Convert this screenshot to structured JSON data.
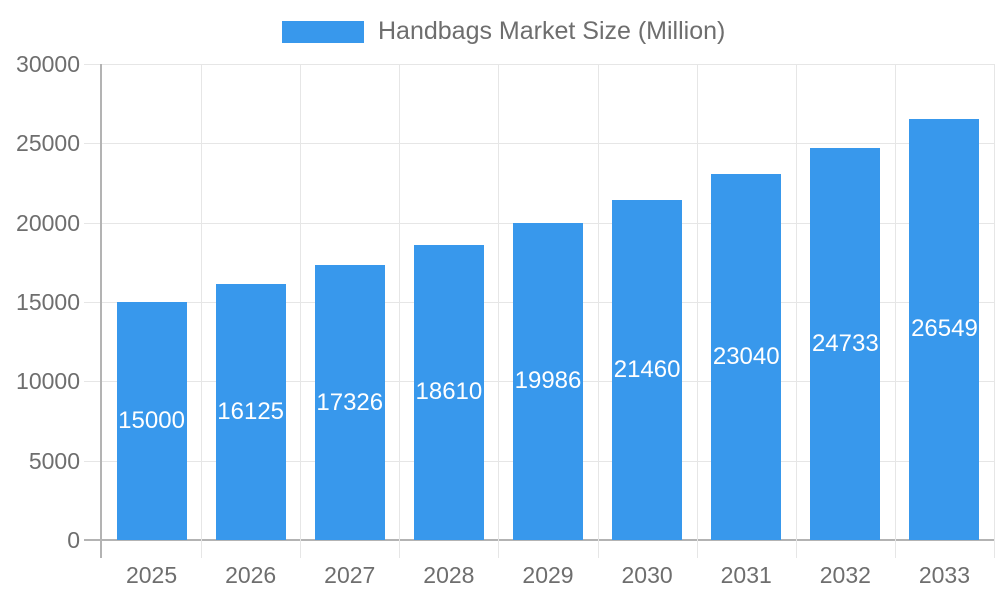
{
  "chart_data": {
    "type": "bar",
    "title": "",
    "legend": "Handbags Market Size (Million)",
    "legend_position": "top",
    "categories": [
      "2025",
      "2026",
      "2027",
      "2028",
      "2029",
      "2030",
      "2031",
      "2032",
      "2033"
    ],
    "values": [
      15000,
      16125,
      17326,
      18610,
      19986,
      21460,
      23040,
      24733,
      26549
    ],
    "xlabel": "",
    "ylabel": "",
    "ylim": [
      0,
      30000
    ],
    "yticks": [
      0,
      5000,
      10000,
      15000,
      20000,
      25000,
      30000
    ],
    "grid": true,
    "colors": {
      "bar": "#3898ec",
      "value_label": "#ffffff",
      "axis_text": "#6e6e6e",
      "gridline": "#e6e6e6",
      "axis_line": "#b3b3b3"
    }
  }
}
